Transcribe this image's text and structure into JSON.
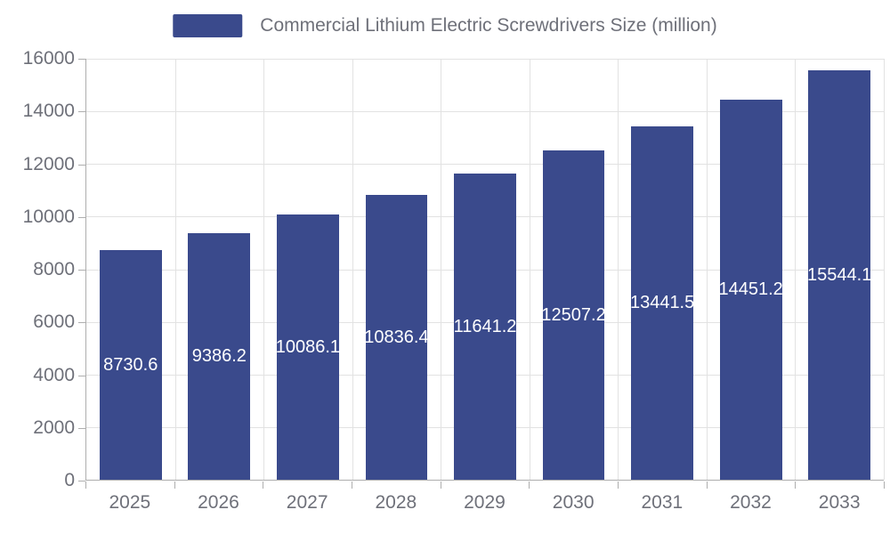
{
  "chart_data": {
    "type": "bar",
    "title": "Commercial Lithium Electric Screwdrivers Size (million)",
    "categories": [
      "2025",
      "2026",
      "2027",
      "2028",
      "2029",
      "2030",
      "2031",
      "2032",
      "2033"
    ],
    "values": [
      8730.6,
      9386.2,
      10086.1,
      10836.4,
      11641.2,
      12507.2,
      13441.5,
      14451.2,
      15544.1
    ],
    "value_labels": [
      "8730.6",
      "9386.2",
      "10086.1",
      "10836.4",
      "11641.2",
      "12507.2",
      "13441.5",
      "14451.2",
      "15544.1"
    ],
    "xlabel": "",
    "ylabel": "",
    "ylim": [
      0,
      16000
    ],
    "yticks": [
      0,
      2000,
      4000,
      6000,
      8000,
      10000,
      12000,
      14000,
      16000
    ],
    "ytick_labels": [
      "0",
      "2000",
      "4000",
      "6000",
      "8000",
      "10000",
      "12000",
      "14000",
      "16000"
    ],
    "grid": "both",
    "legend_position": "top",
    "value_label_position": "inside-center",
    "colors": {
      "bar": "#3A4A8C",
      "grid_line": "#E2E2E2",
      "axis_line": "#AEAEAE",
      "axis_text": "#6E7079",
      "value_text": "#FFFFFF"
    }
  }
}
